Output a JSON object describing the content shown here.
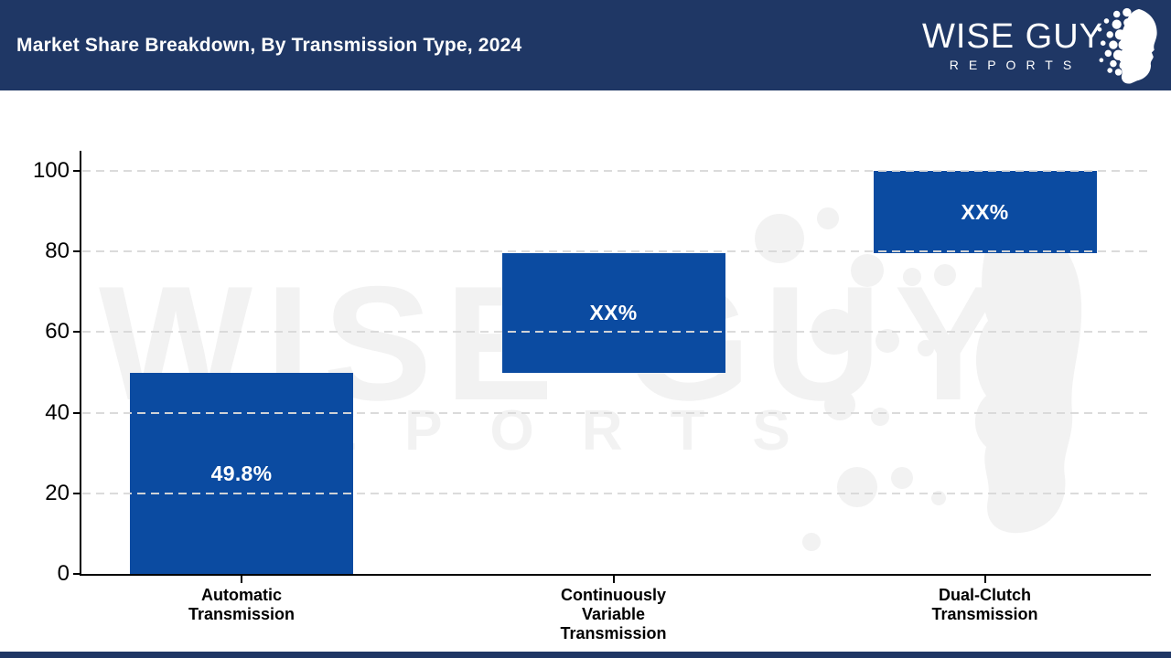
{
  "header": {
    "title": "Market Share Breakdown, By Transmission Type, 2024",
    "logo_line1": "WISE GUY",
    "logo_line2": "REPORTS"
  },
  "watermark": {
    "line1": "WISE GUY",
    "line2": "REPORTS"
  },
  "colors": {
    "header_bg": "#1f3765",
    "bar": "#0b4ba1",
    "grid": "#d9d9d9",
    "watermark": "#f2f2f2",
    "axis": "#000000",
    "bar_label": "#ffffff"
  },
  "chart_data": {
    "type": "bar",
    "variant": "floating-waterfall",
    "title": "Market Share Breakdown, By Transmission Type, 2024",
    "categories": [
      {
        "lines": [
          "Automatic",
          "Transmission"
        ]
      },
      {
        "lines": [
          "Continuously",
          "Variable",
          "Transmission"
        ]
      },
      {
        "lines": [
          "Dual-Clutch",
          "Transmission"
        ]
      }
    ],
    "segments": [
      {
        "from": 0,
        "to": 49.8,
        "label": "49.8%"
      },
      {
        "from": 49.8,
        "to": 79.5,
        "label": "XX%"
      },
      {
        "from": 79.5,
        "to": 100,
        "label": "XX%"
      }
    ],
    "yticks": [
      0,
      20,
      40,
      60,
      80,
      100
    ],
    "ylim": [
      0,
      105
    ],
    "xlabel": "",
    "ylabel": "",
    "grid": "dashed-horizontal",
    "legend": "none"
  }
}
